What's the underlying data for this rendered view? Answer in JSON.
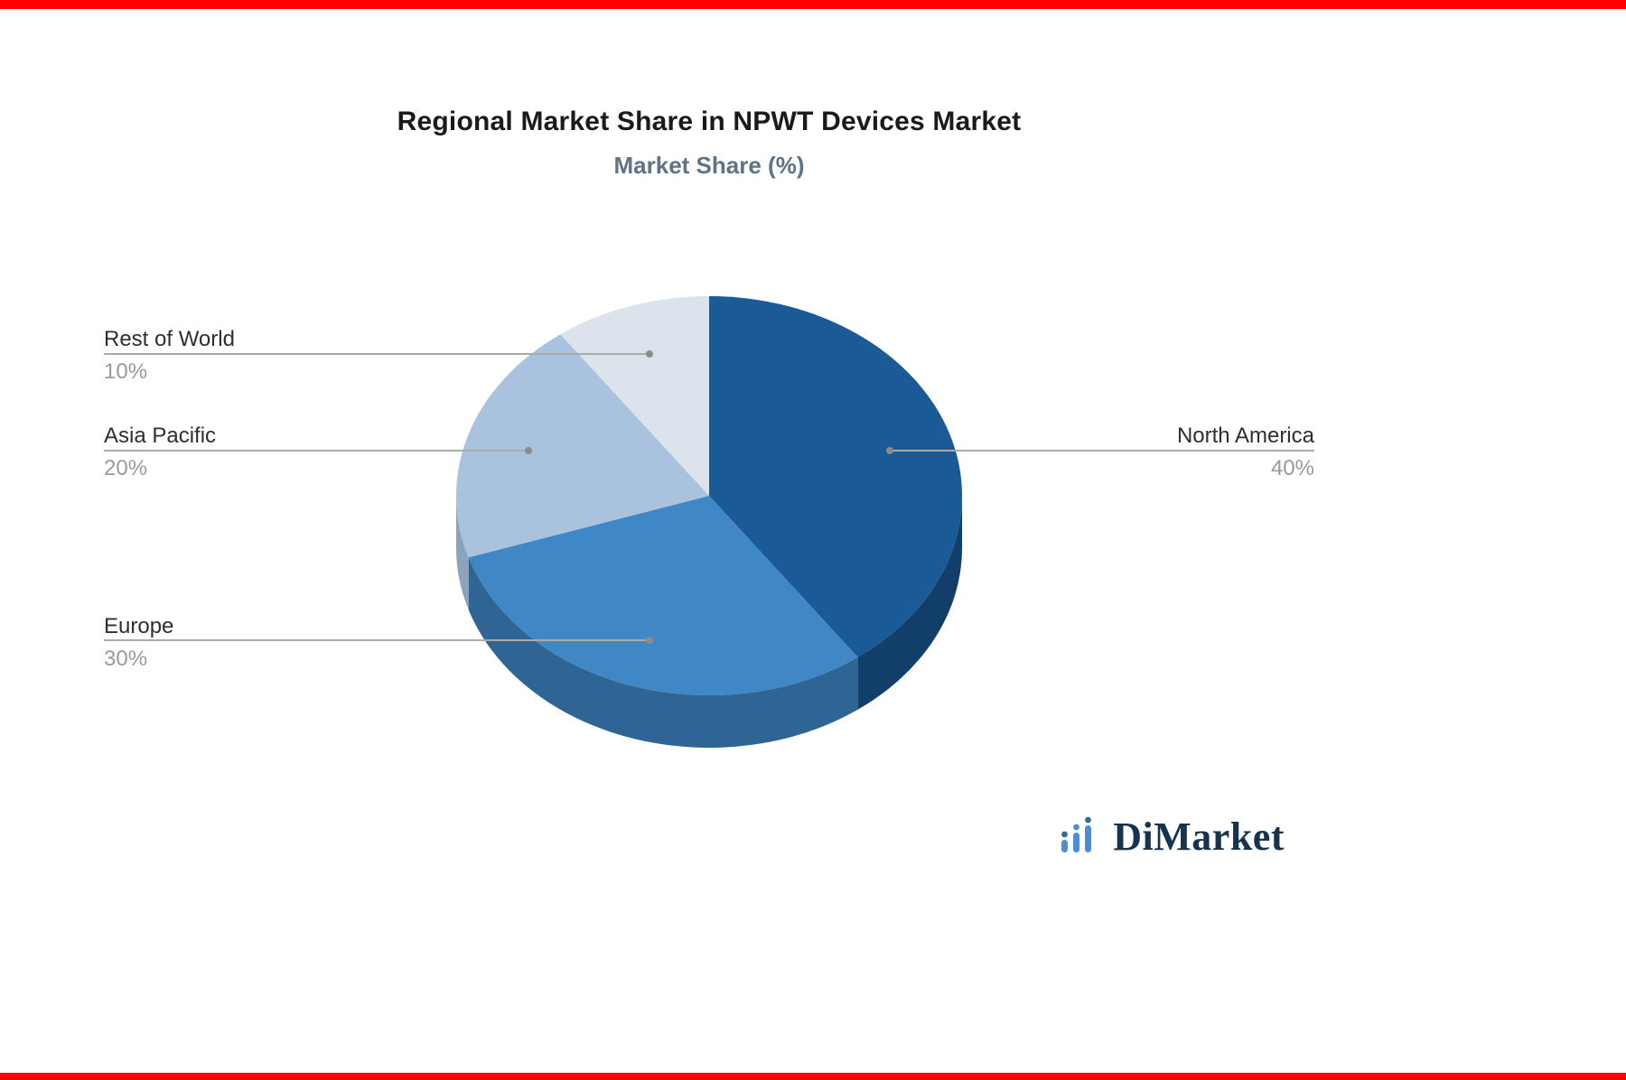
{
  "chart_data": {
    "type": "pie",
    "title": "Regional Market Share in NPWT Devices Market",
    "subtitle": "Market Share (%)",
    "labels": [
      "North America",
      "Europe",
      "Asia Pacific",
      "Rest of World"
    ],
    "values": [
      40,
      30,
      20,
      10
    ],
    "percent_labels": [
      "40%",
      "30%",
      "20%",
      "10%"
    ],
    "colors": [
      "#1a5a96",
      "#3f87c5",
      "#a9c3de",
      "#dde3ed"
    ],
    "depth_colors": [
      "#123f6a",
      "#2f6594",
      "#8ba3bd",
      "#b9c4d4"
    ],
    "start_angle_deg": 0,
    "direction": "clockwise",
    "effect_3d": true,
    "legend_position": "callout-lines",
    "accent_border_color": "#ff0000"
  },
  "logo": {
    "text": "DiMarket"
  }
}
